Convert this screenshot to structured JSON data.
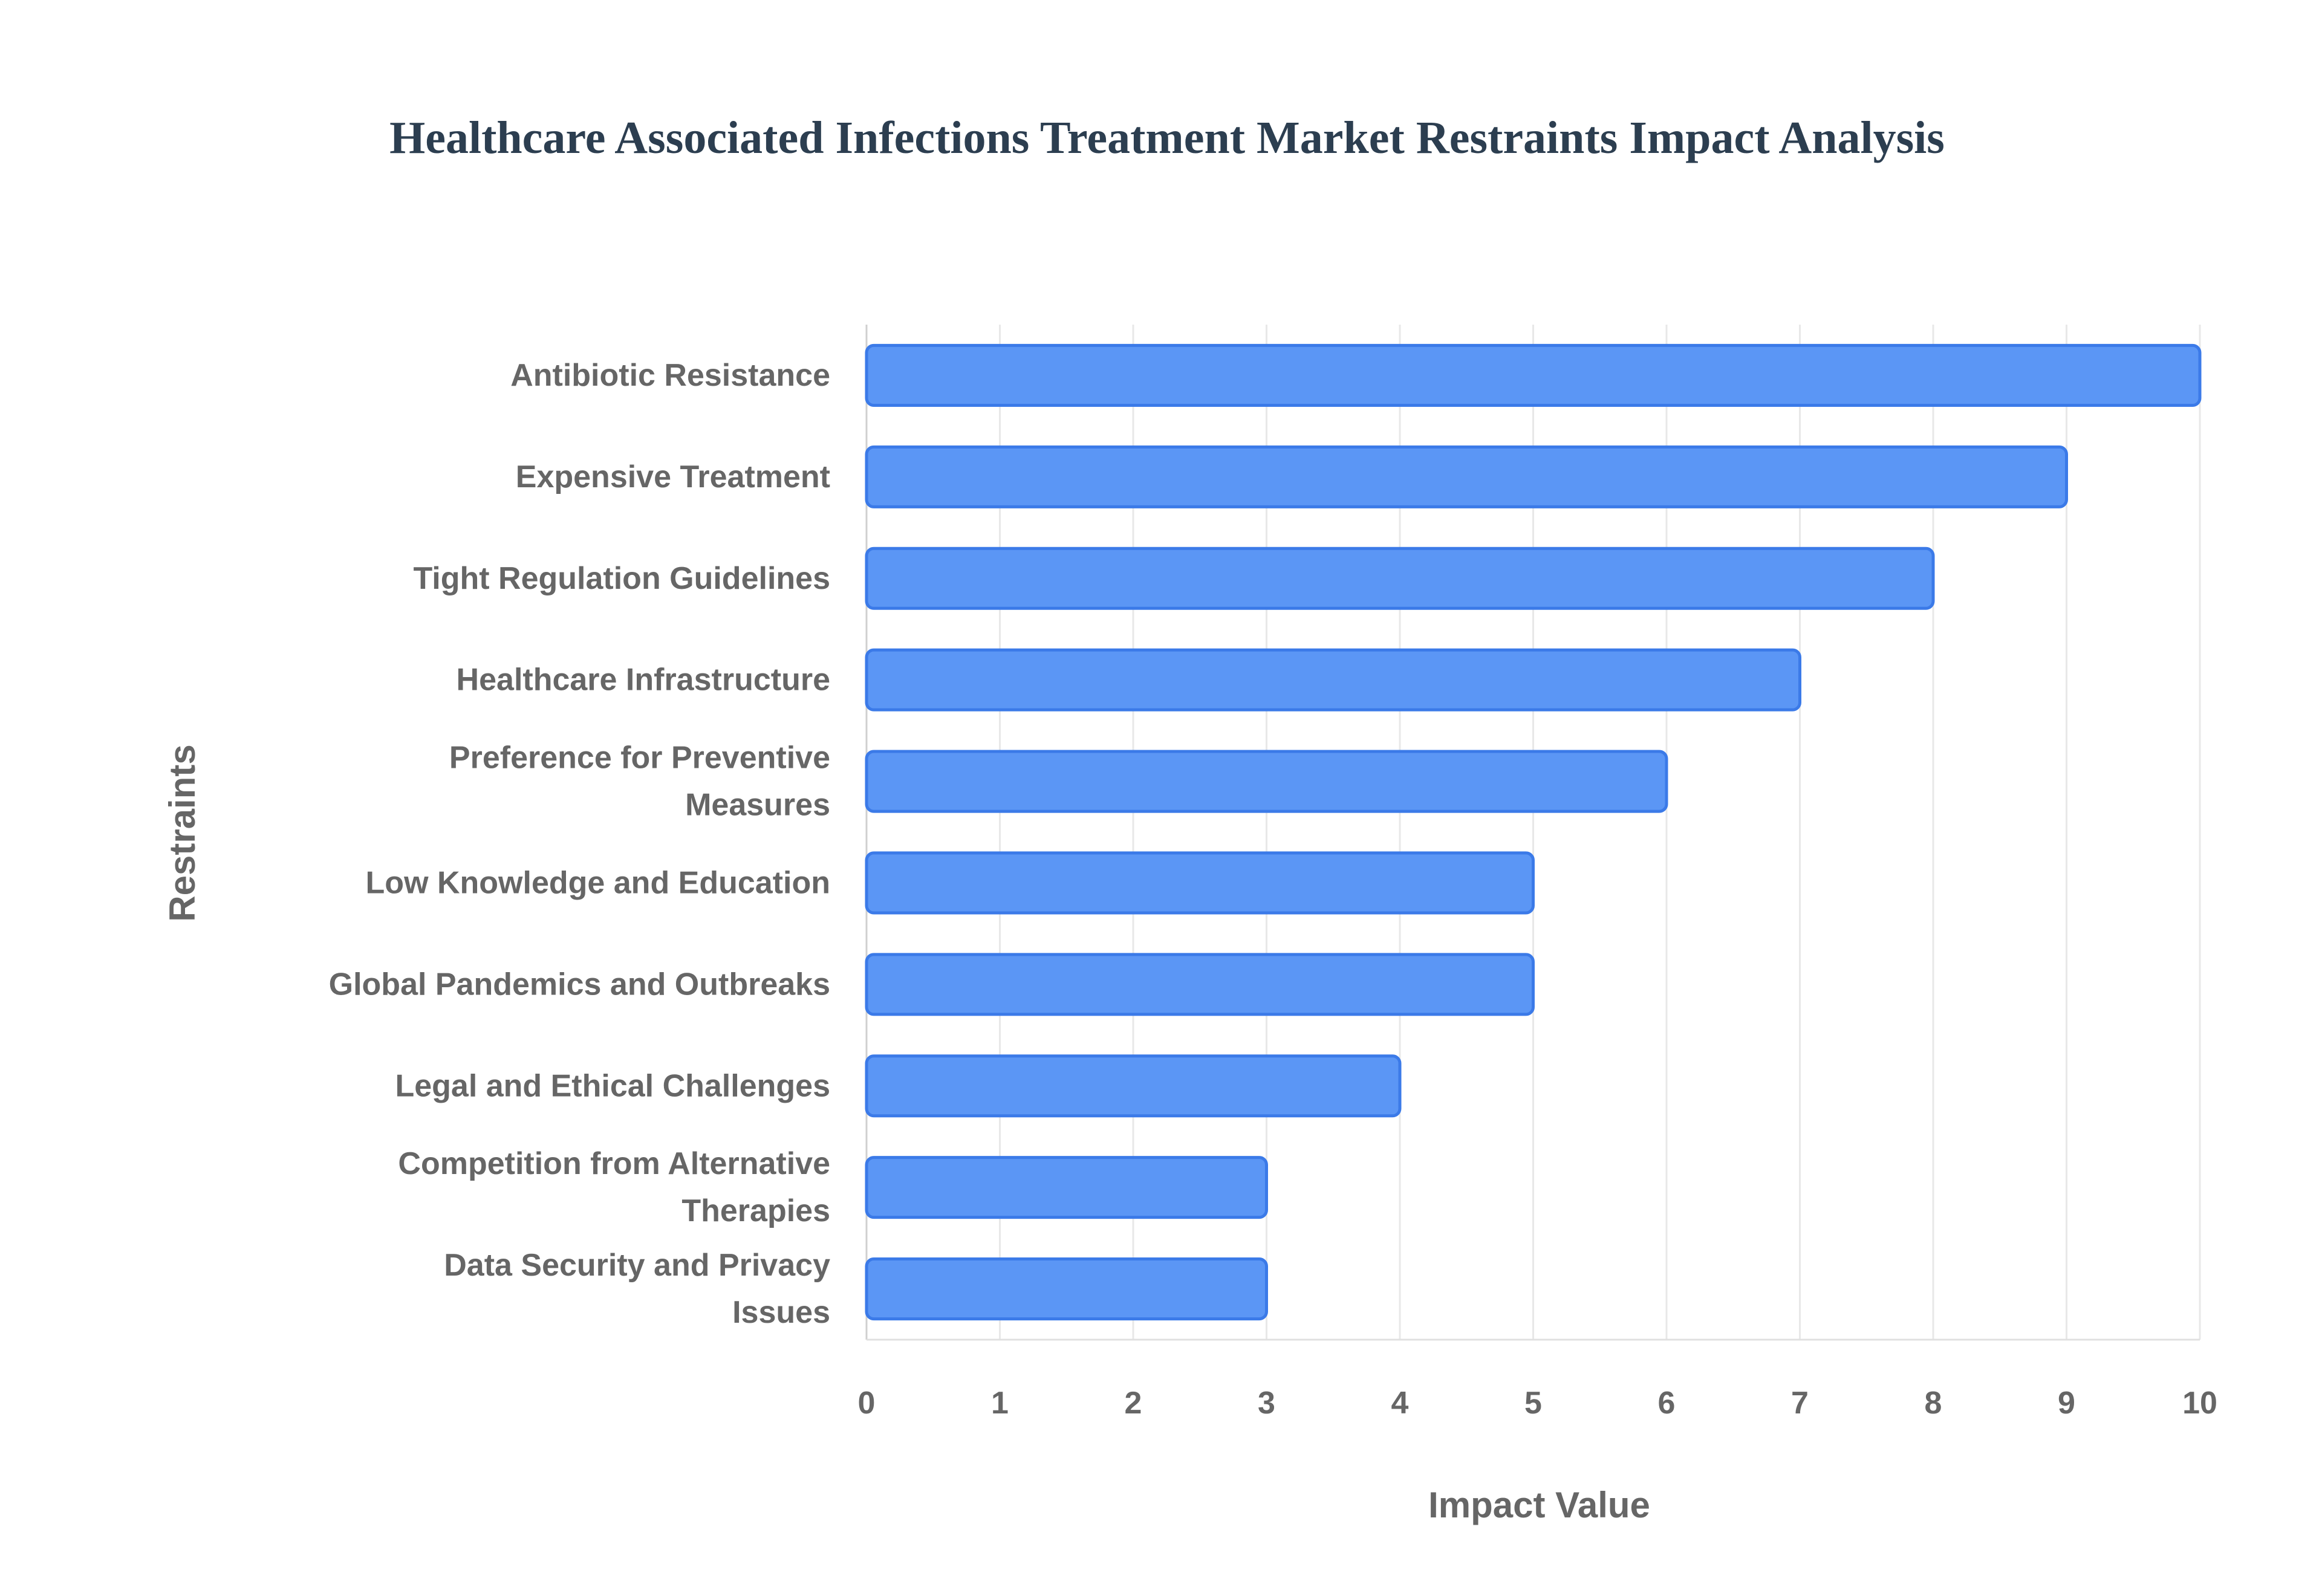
{
  "chart_data": {
    "type": "bar",
    "orientation": "horizontal",
    "title": "Healthcare Associated Infections Treatment Market Restraints Impact Analysis",
    "xlabel": "Impact Value",
    "ylabel": "Restraints",
    "xlim": [
      0,
      10
    ],
    "xticks": [
      "0",
      "1",
      "2",
      "3",
      "4",
      "5",
      "6",
      "7",
      "8",
      "9",
      "10"
    ],
    "grid": true,
    "bar_color": "#5b96f5",
    "bar_edge_color": "#3b7ae8",
    "categories": [
      [
        "Antibiotic Resistance"
      ],
      [
        "Expensive Treatment"
      ],
      [
        "Tight Regulation Guidelines"
      ],
      [
        "Healthcare Infrastructure"
      ],
      [
        "Preference for Preventive",
        "Measures"
      ],
      [
        "Low Knowledge and Education"
      ],
      [
        "Global Pandemics and Outbreaks"
      ],
      [
        "Legal and Ethical Challenges"
      ],
      [
        "Competition from Alternative",
        "Therapies"
      ],
      [
        "Data Security and Privacy",
        "Issues"
      ]
    ],
    "values": [
      10,
      9,
      8,
      7,
      6,
      5,
      5,
      4,
      3,
      3
    ]
  }
}
